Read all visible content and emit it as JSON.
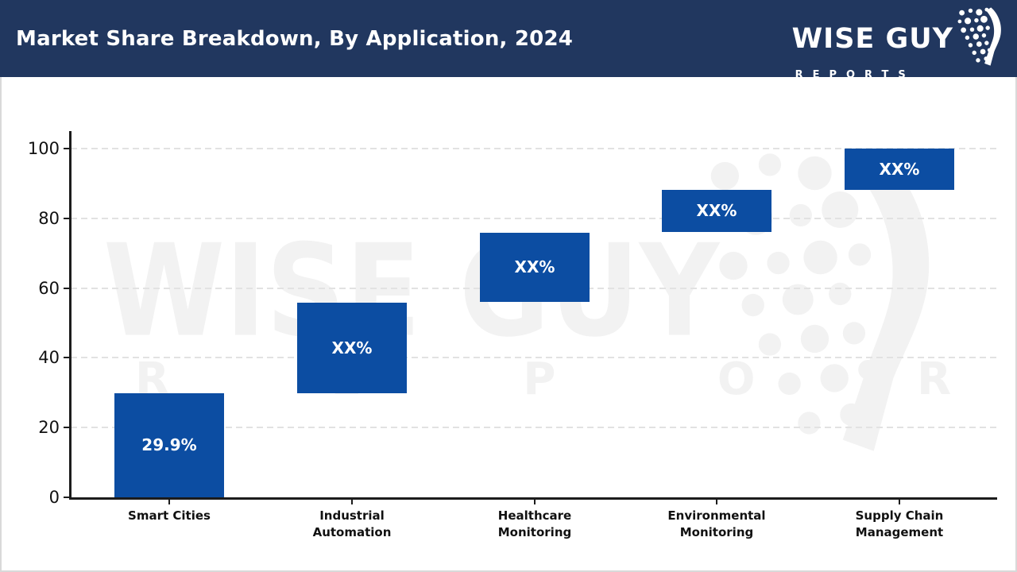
{
  "header": {
    "title": "Market Share Breakdown, By Application, 2024",
    "logo": {
      "wordmark": "WISE GUY",
      "subtext": "REPORTS"
    }
  },
  "watermark": {
    "wordmark": "WISE GUY",
    "subtext": "R E P O R T S"
  },
  "colors": {
    "header_bg": "#21375f",
    "bar": "#0c4da2",
    "grid": "#e2e2e2",
    "axis": "#1c1c1c",
    "text": "#111111",
    "value_label": "#ffffff",
    "watermark": "#f2f2f2",
    "border": "#d9d9d9",
    "background": "#ffffff"
  },
  "chart_data": {
    "type": "bar",
    "variant": "waterfall",
    "title": "Market Share Breakdown, By Application, 2024",
    "unit": "%",
    "xlabel": "",
    "ylabel": "",
    "ylim": [
      0,
      105
    ],
    "yticks": [
      0,
      20,
      40,
      60,
      80,
      100
    ],
    "grid": {
      "axis": "y",
      "style": "dashed"
    },
    "legend": null,
    "categories": [
      "Smart Cities",
      "Industrial\nAutomation",
      "Healthcare\nMonitoring",
      "Environmental\nMonitoring",
      "Supply Chain\nManagement"
    ],
    "bars": [
      {
        "category": "Smart Cities",
        "start": 0,
        "end": 29.9,
        "value_label": "29.9%"
      },
      {
        "category": "Industrial Automation",
        "start": 29.9,
        "end": 55.8,
        "value_label": "XX%"
      },
      {
        "category": "Healthcare Monitoring",
        "start": 56.0,
        "end": 75.9,
        "value_label": "XX%"
      },
      {
        "category": "Environmental Monitoring",
        "start": 76.1,
        "end": 88.2,
        "value_label": "XX%"
      },
      {
        "category": "Supply Chain Management",
        "start": 88.2,
        "end": 100.0,
        "value_label": "XX%"
      }
    ]
  }
}
